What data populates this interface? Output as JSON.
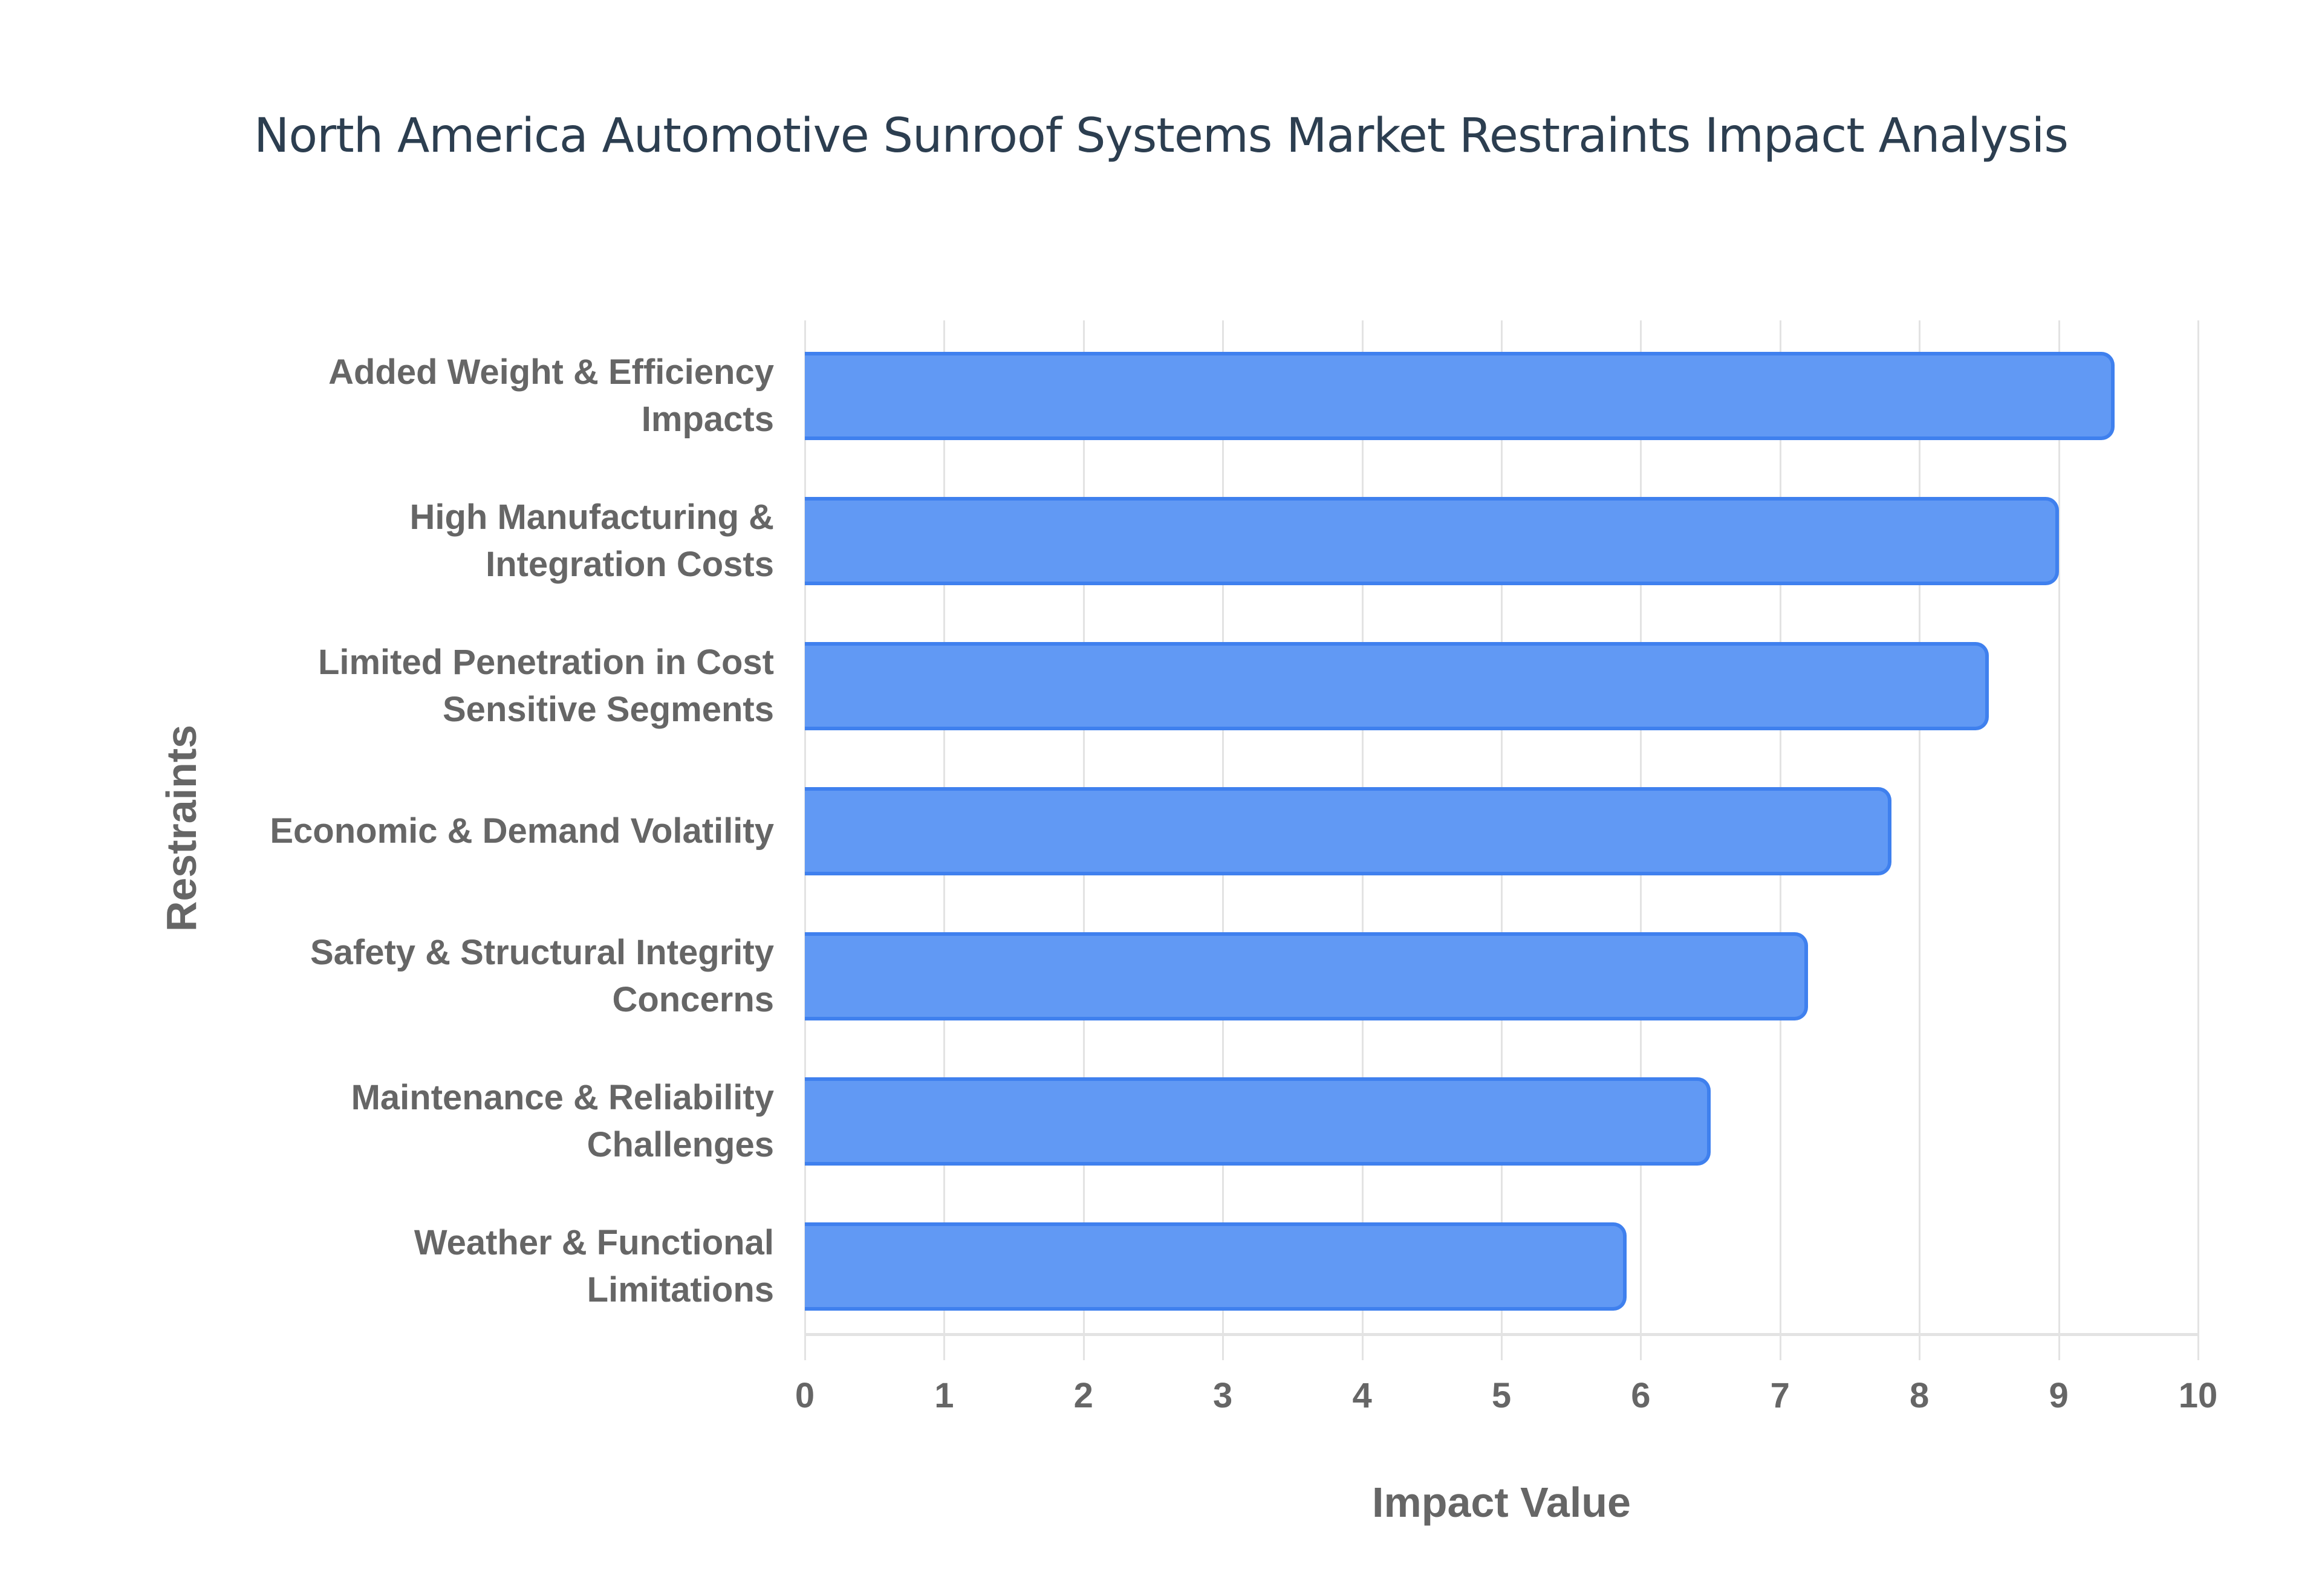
{
  "chart_data": {
    "type": "bar",
    "orientation": "horizontal",
    "title": "North America Automotive Sunroof Systems Market Restraints Impact Analysis",
    "xlabel": "Impact Value",
    "ylabel": "Restraints",
    "xlim": [
      0,
      10
    ],
    "x_ticks": [
      "0",
      "1",
      "2",
      "3",
      "4",
      "5",
      "6",
      "7",
      "8",
      "9",
      "10"
    ],
    "grid": true,
    "legend": "none",
    "bar_color": "#6199f4",
    "bar_border_color": "#3f80ee",
    "categories": [
      "Added Weight & Efficiency Impacts",
      "High Manufacturing & Integration Costs",
      "Limited Penetration in Cost Sensitive Segments",
      "Economic & Demand Volatility",
      "Safety & Structural Integrity Concerns",
      "Maintenance & Reliability Challenges",
      "Weather & Functional Limitations"
    ],
    "values": [
      9.4,
      9.0,
      8.5,
      7.8,
      7.2,
      6.5,
      5.9
    ]
  },
  "labels": [
    {
      "line1": "Added Weight & Efficiency",
      "line2": "Impacts"
    },
    {
      "line1": "High Manufacturing &",
      "line2": "Integration Costs"
    },
    {
      "line1": "Limited Penetration in Cost",
      "line2": "Sensitive Segments"
    },
    {
      "line1": "Economic & Demand Volatility",
      "line2": ""
    },
    {
      "line1": "Safety & Structural Integrity",
      "line2": "Concerns"
    },
    {
      "line1": "Maintenance & Reliability",
      "line2": "Challenges"
    },
    {
      "line1": "Weather & Functional",
      "line2": "Limitations"
    }
  ]
}
